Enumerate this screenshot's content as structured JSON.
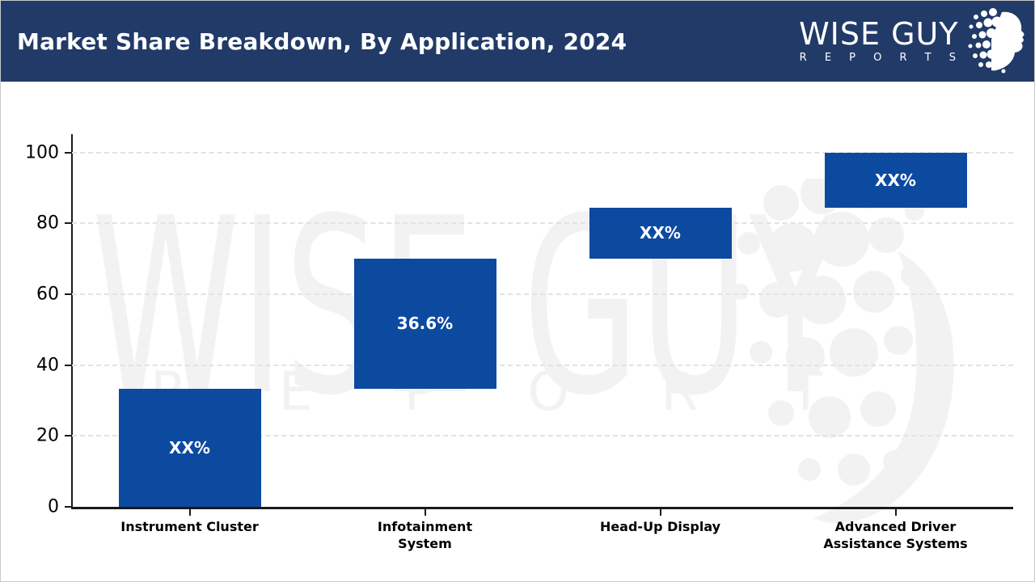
{
  "header": {
    "title": "Market Share Breakdown, By Application, 2024",
    "bg_color": "#223A68",
    "logo": {
      "line1": "WISE GUY",
      "line2": "R E P O R T S",
      "head_icon": "dotted-head-profile"
    }
  },
  "watermark": {
    "big_text": "WISE GUY",
    "reports_text": "R E P O R T S",
    "color": "#f2f2f3"
  },
  "chart_data": {
    "type": "bar",
    "subtype": "waterfall-stacked-segments",
    "title": "Market Share Breakdown, By Application, 2024",
    "categories": [
      "Instrument Cluster",
      "Infotainment\nSystem",
      "Head-Up Display",
      "Advanced Driver\nAssistance Systems"
    ],
    "segments": [
      {
        "label": "XX%",
        "start": 0,
        "end": 33.4,
        "size": 33.4
      },
      {
        "label": "36.6%",
        "start": 33.4,
        "end": 70.0,
        "size": 36.6
      },
      {
        "label": "XX%",
        "start": 70.0,
        "end": 84.4,
        "size": 14.4
      },
      {
        "label": "XX%",
        "start": 84.4,
        "end": 100.0,
        "size": 15.6
      }
    ],
    "bar_color": "#0C4AA0",
    "bar_label_color": "#ffffff",
    "y_ticks": [
      0,
      20,
      40,
      60,
      80,
      100
    ],
    "ylim": [
      0,
      105
    ],
    "xlabel": "",
    "ylabel": "",
    "grid": "horizontal-dashed",
    "legend": "none"
  }
}
